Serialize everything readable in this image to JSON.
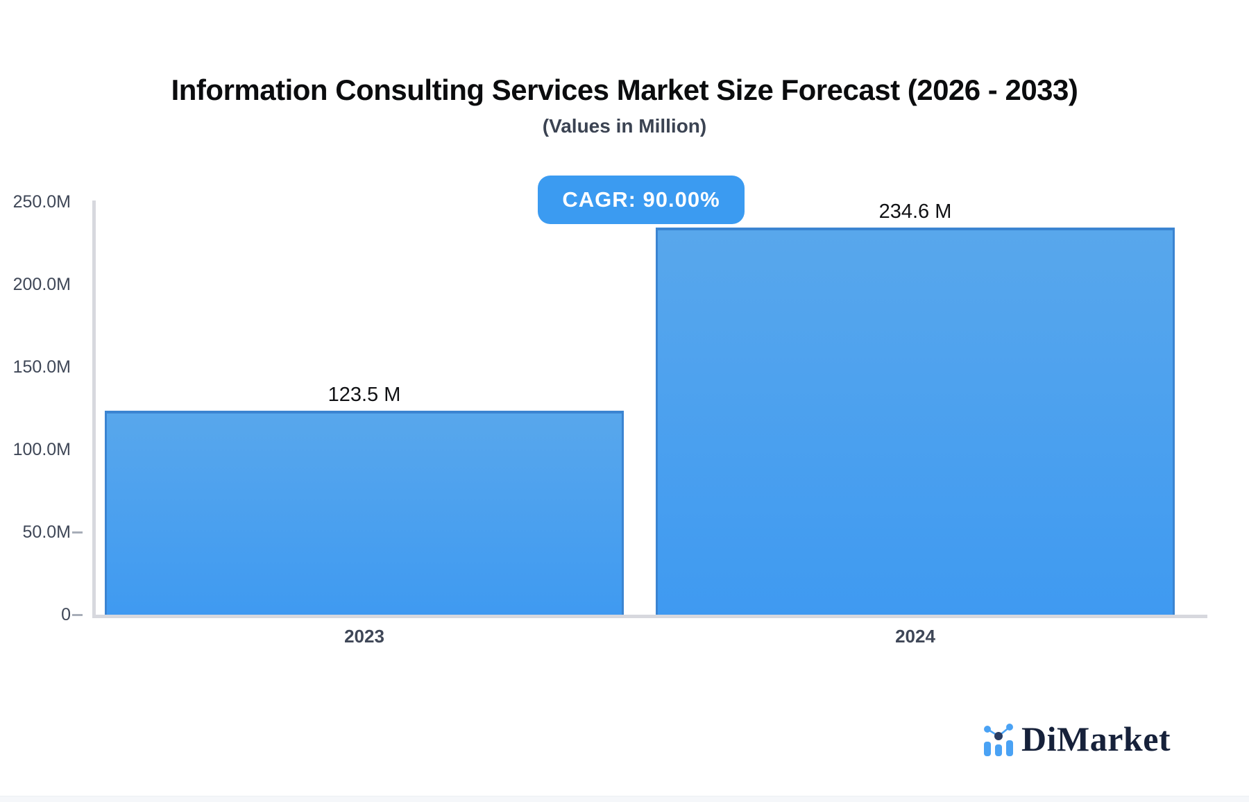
{
  "chart_data": {
    "type": "bar",
    "title": "Information Consulting Services Market Size Forecast (2026 - 2033)",
    "subtitle": "(Values in Million)",
    "cagr_label": "CAGR: 90.00%",
    "categories": [
      "2023",
      "2024"
    ],
    "values": [
      123.5,
      234.6
    ],
    "value_labels": [
      "123.5 M",
      "234.6 M"
    ],
    "ylim": [
      0,
      250
    ],
    "ytick_interval": 50,
    "yticks": [
      {
        "value": 250,
        "label": "250.0M",
        "dash": false
      },
      {
        "value": 200,
        "label": "200.0M",
        "dash": false
      },
      {
        "value": 150,
        "label": "150.0M",
        "dash": false
      },
      {
        "value": 100,
        "label": "100.0M",
        "dash": false
      },
      {
        "value": 50,
        "label": "50.0M",
        "dash": true
      },
      {
        "value": 0,
        "label": "0",
        "dash": true
      }
    ],
    "grid": false,
    "legend": null,
    "colors": {
      "bar_gradient_top": "#58a7ec",
      "bar_gradient_bottom": "#3f9af1",
      "bar_border": "#3b84d1",
      "badge_bg": "#3b9bf1",
      "badge_text": "#ffffff",
      "axis_line": "#d7d8de",
      "tick_label": "#3f4757",
      "value_label": "#101114",
      "logo_navy": "#16213a",
      "logo_blue": "#4aa2f4",
      "logo_dot_dark": "#2a3d63"
    }
  },
  "branding": {
    "logo_text": "DiMarket"
  }
}
